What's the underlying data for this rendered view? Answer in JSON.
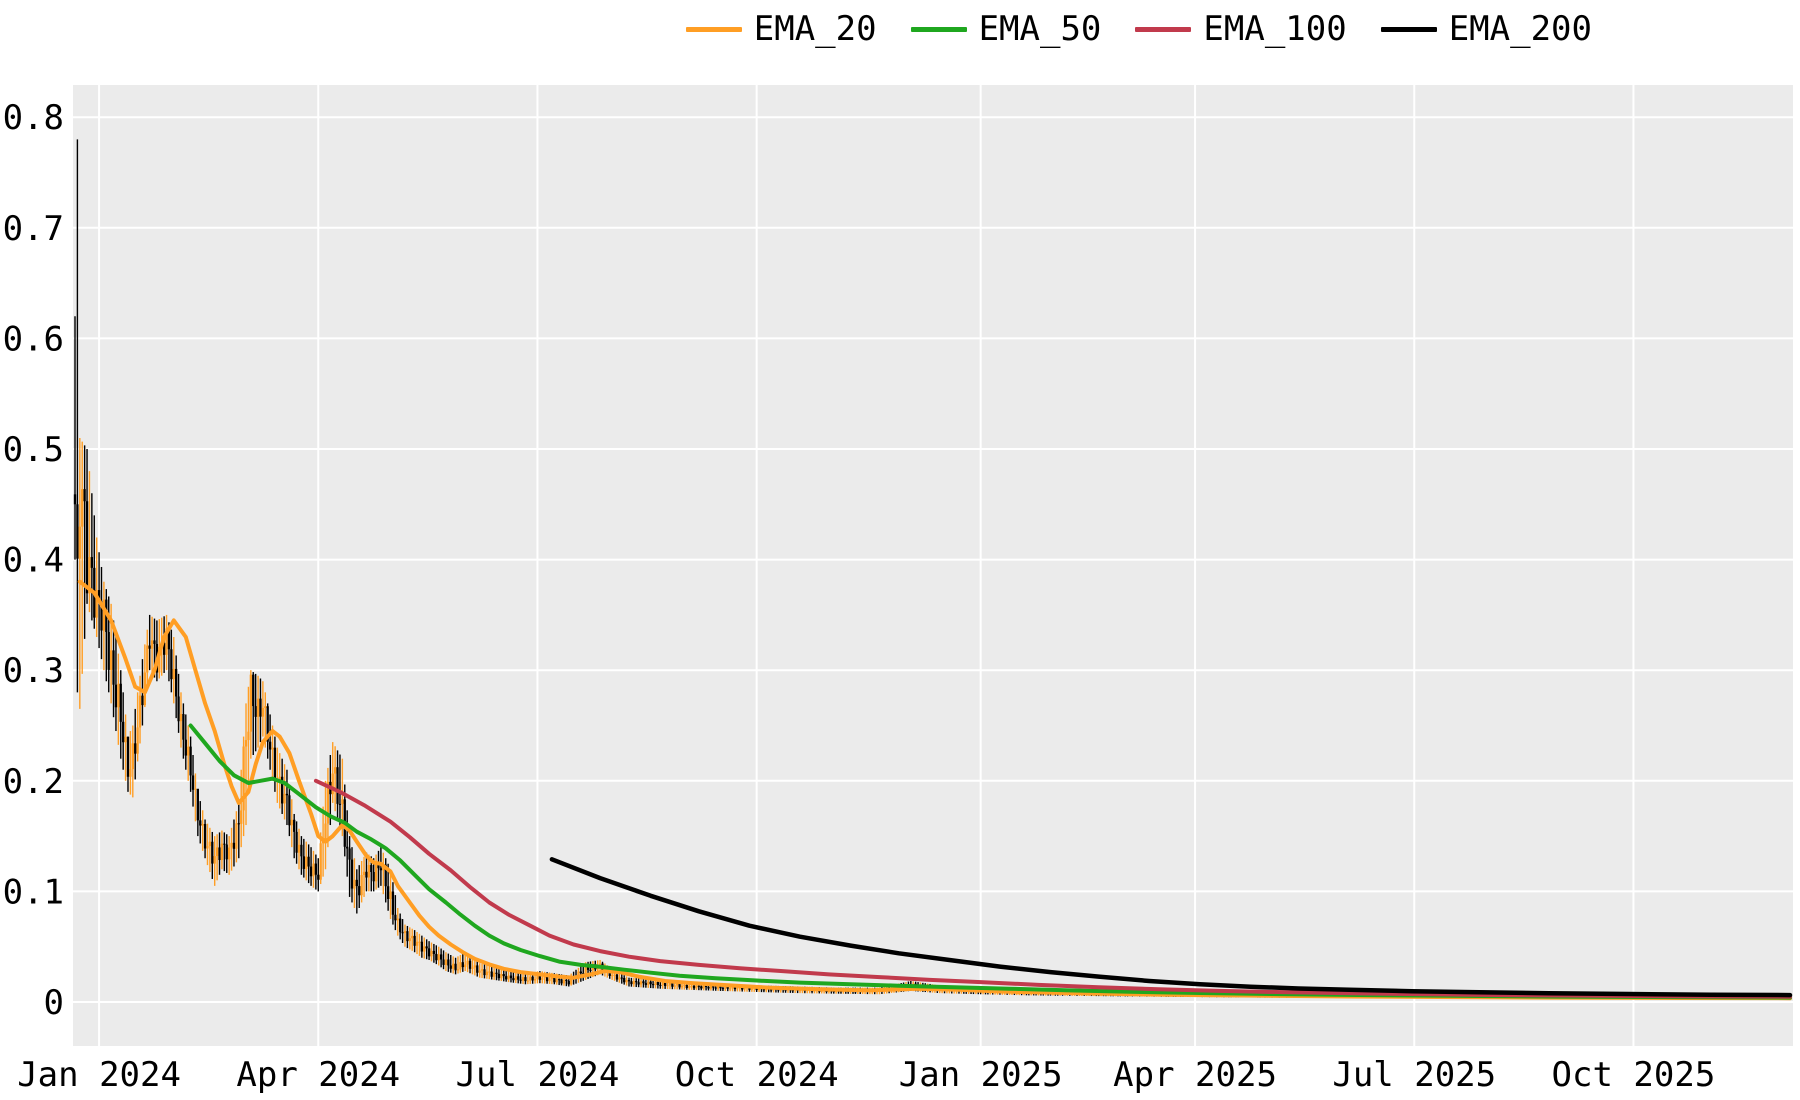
{
  "legend": {
    "items": [
      {
        "label": "EMA_20",
        "color": "#ff9e24"
      },
      {
        "label": "EMA_50",
        "color": "#1fa71f"
      },
      {
        "label": "EMA_100",
        "color": "#c13a4c"
      },
      {
        "label": "EMA_200",
        "color": "#000000"
      }
    ]
  },
  "colors": {
    "figure_bg": "#ffffff",
    "plot_bg": "#ebebeb",
    "grid": "#ffffff",
    "text": "#000000",
    "candle_up": "#ff9e24",
    "candle_down": "#000000"
  },
  "chart_data": {
    "type": "candlestick",
    "title": "",
    "legend_entries": [
      "EMA_20",
      "EMA_50",
      "EMA_100",
      "EMA_200"
    ],
    "x_axis": {
      "unit": "trading day index, d0 = late Dec 2023, ~712 days total",
      "tick_labels": [
        "Jan 2024",
        "Apr 2024",
        "Jul 2024",
        "Oct 2024",
        "Jan 2025",
        "Apr 2025",
        "Jul 2025",
        "Oct 2025"
      ],
      "tick_day_index": [
        10,
        101,
        192,
        283,
        376,
        465,
        556,
        647
      ]
    },
    "y_axis": {
      "lim": [
        -0.04,
        0.83
      ],
      "ticks": [
        {
          "v": 0.0,
          "label": "0"
        },
        {
          "v": 0.1,
          "label": "0.1"
        },
        {
          "v": 0.2,
          "label": "0.2"
        },
        {
          "v": 0.3,
          "label": "0.3"
        },
        {
          "v": 0.4,
          "label": "0.4"
        },
        {
          "v": 0.5,
          "label": "0.5"
        },
        {
          "v": 0.6,
          "label": "0.6"
        },
        {
          "v": 0.7,
          "label": "0.7"
        },
        {
          "v": 0.8,
          "label": "0.8"
        }
      ]
    },
    "grid": true,
    "legend_position": "top-right",
    "price_envelope": {
      "description": "sampled OHLC envelope read from chart: [day, high, low, close]; daily candles interpolated between samples",
      "points": [
        [
          0,
          0.62,
          0.4,
          0.45
        ],
        [
          1,
          0.78,
          0.28,
          0.31
        ],
        [
          2,
          0.51,
          0.265,
          0.48
        ],
        [
          5,
          0.5,
          0.36,
          0.4
        ],
        [
          9,
          0.42,
          0.33,
          0.36
        ],
        [
          12,
          0.38,
          0.3,
          0.35
        ],
        [
          15,
          0.36,
          0.27,
          0.3
        ],
        [
          19,
          0.3,
          0.22,
          0.26
        ],
        [
          22,
          0.24,
          0.19,
          0.21
        ],
        [
          24,
          0.25,
          0.185,
          0.22
        ],
        [
          28,
          0.31,
          0.25,
          0.28
        ],
        [
          31,
          0.35,
          0.3,
          0.33
        ],
        [
          34,
          0.345,
          0.29,
          0.31
        ],
        [
          38,
          0.35,
          0.3,
          0.33
        ],
        [
          41,
          0.33,
          0.27,
          0.29
        ],
        [
          44,
          0.28,
          0.23,
          0.25
        ],
        [
          48,
          0.24,
          0.19,
          0.21
        ],
        [
          51,
          0.19,
          0.15,
          0.17
        ],
        [
          54,
          0.165,
          0.13,
          0.145
        ],
        [
          58,
          0.15,
          0.105,
          0.13
        ],
        [
          61,
          0.155,
          0.12,
          0.14
        ],
        [
          64,
          0.15,
          0.115,
          0.135
        ],
        [
          68,
          0.18,
          0.13,
          0.16
        ],
        [
          71,
          0.27,
          0.16,
          0.24
        ],
        [
          73,
          0.3,
          0.22,
          0.28
        ],
        [
          76,
          0.295,
          0.23,
          0.26
        ],
        [
          78,
          0.29,
          0.24,
          0.27
        ],
        [
          81,
          0.26,
          0.21,
          0.23
        ],
        [
          84,
          0.23,
          0.18,
          0.2
        ],
        [
          88,
          0.21,
          0.16,
          0.18
        ],
        [
          91,
          0.17,
          0.13,
          0.15
        ],
        [
          94,
          0.15,
          0.115,
          0.13
        ],
        [
          98,
          0.14,
          0.105,
          0.12
        ],
        [
          101,
          0.13,
          0.1,
          0.115
        ],
        [
          104,
          0.2,
          0.12,
          0.17
        ],
        [
          107,
          0.235,
          0.18,
          0.21
        ],
        [
          111,
          0.22,
          0.15,
          0.17
        ],
        [
          114,
          0.15,
          0.095,
          0.12
        ],
        [
          117,
          0.12,
          0.08,
          0.1
        ],
        [
          121,
          0.135,
          0.1,
          0.12
        ],
        [
          124,
          0.13,
          0.1,
          0.115
        ],
        [
          127,
          0.14,
          0.105,
          0.125
        ],
        [
          131,
          0.12,
          0.075,
          0.09
        ],
        [
          134,
          0.085,
          0.06,
          0.07
        ],
        [
          137,
          0.07,
          0.05,
          0.06
        ],
        [
          141,
          0.065,
          0.045,
          0.055
        ],
        [
          144,
          0.06,
          0.04,
          0.05
        ],
        [
          147,
          0.055,
          0.038,
          0.045
        ],
        [
          151,
          0.05,
          0.033,
          0.04
        ],
        [
          154,
          0.045,
          0.028,
          0.035
        ],
        [
          158,
          0.04,
          0.025,
          0.03
        ],
        [
          162,
          0.045,
          0.028,
          0.035
        ],
        [
          168,
          0.035,
          0.022,
          0.028
        ],
        [
          174,
          0.032,
          0.02,
          0.025
        ],
        [
          180,
          0.028,
          0.018,
          0.022
        ],
        [
          187,
          0.026,
          0.016,
          0.02
        ],
        [
          193,
          0.028,
          0.017,
          0.022
        ],
        [
          199,
          0.026,
          0.016,
          0.02
        ],
        [
          205,
          0.024,
          0.014,
          0.018
        ],
        [
          212,
          0.036,
          0.02,
          0.03
        ],
        [
          218,
          0.038,
          0.025,
          0.032
        ],
        [
          223,
          0.03,
          0.02,
          0.024
        ],
        [
          230,
          0.022,
          0.014,
          0.018
        ],
        [
          243,
          0.02,
          0.012,
          0.016
        ],
        [
          255,
          0.018,
          0.011,
          0.014
        ],
        [
          268,
          0.016,
          0.01,
          0.013
        ],
        [
          284,
          0.015,
          0.009,
          0.012
        ],
        [
          301,
          0.014,
          0.008,
          0.011
        ],
        [
          317,
          0.013,
          0.0075,
          0.01
        ],
        [
          334,
          0.013,
          0.007,
          0.01
        ],
        [
          347,
          0.019,
          0.01,
          0.015
        ],
        [
          359,
          0.015,
          0.008,
          0.012
        ],
        [
          376,
          0.013,
          0.007,
          0.01
        ],
        [
          396,
          0.012,
          0.006,
          0.009
        ],
        [
          417,
          0.011,
          0.0055,
          0.008
        ],
        [
          438,
          0.01,
          0.005,
          0.007
        ],
        [
          463,
          0.009,
          0.0045,
          0.0065
        ],
        [
          492,
          0.008,
          0.004,
          0.006
        ],
        [
          521,
          0.0075,
          0.0038,
          0.0055
        ],
        [
          554,
          0.007,
          0.0035,
          0.005
        ],
        [
          591,
          0.006,
          0.003,
          0.0045
        ],
        [
          633,
          0.0055,
          0.0028,
          0.004
        ],
        [
          674,
          0.005,
          0.0026,
          0.0038
        ],
        [
          712,
          0.0048,
          0.0025,
          0.0035
        ]
      ]
    },
    "series": [
      {
        "name": "EMA_20",
        "color": "#ff9e24",
        "width": 4,
        "points": [
          [
            2,
            0.38
          ],
          [
            8,
            0.37
          ],
          [
            15,
            0.345
          ],
          [
            21,
            0.31
          ],
          [
            25,
            0.285
          ],
          [
            29,
            0.28
          ],
          [
            33,
            0.3
          ],
          [
            37,
            0.33
          ],
          [
            41,
            0.345
          ],
          [
            46,
            0.33
          ],
          [
            50,
            0.3
          ],
          [
            54,
            0.27
          ],
          [
            58,
            0.245
          ],
          [
            62,
            0.215
          ],
          [
            65,
            0.195
          ],
          [
            68,
            0.18
          ],
          [
            72,
            0.19
          ],
          [
            75,
            0.215
          ],
          [
            78,
            0.235
          ],
          [
            82,
            0.245
          ],
          [
            85,
            0.24
          ],
          [
            89,
            0.225
          ],
          [
            93,
            0.2
          ],
          [
            98,
            0.17
          ],
          [
            101,
            0.15
          ],
          [
            104,
            0.145
          ],
          [
            107,
            0.15
          ],
          [
            111,
            0.16
          ],
          [
            114,
            0.155
          ],
          [
            117,
            0.145
          ],
          [
            121,
            0.132
          ],
          [
            124,
            0.126
          ],
          [
            127,
            0.125
          ],
          [
            131,
            0.118
          ],
          [
            134,
            0.105
          ],
          [
            139,
            0.09
          ],
          [
            143,
            0.078
          ],
          [
            147,
            0.068
          ],
          [
            151,
            0.06
          ],
          [
            156,
            0.052
          ],
          [
            161,
            0.045
          ],
          [
            166,
            0.039
          ],
          [
            172,
            0.034
          ],
          [
            178,
            0.03
          ],
          [
            185,
            0.027
          ],
          [
            193,
            0.025
          ],
          [
            201,
            0.023
          ],
          [
            207,
            0.022
          ],
          [
            214,
            0.025
          ],
          [
            220,
            0.028
          ],
          [
            226,
            0.027
          ],
          [
            234,
            0.023
          ],
          [
            245,
            0.019
          ],
          [
            257,
            0.017
          ],
          [
            272,
            0.015
          ],
          [
            288,
            0.013
          ],
          [
            309,
            0.0115
          ],
          [
            330,
            0.0105
          ],
          [
            349,
            0.012
          ],
          [
            367,
            0.011
          ],
          [
            384,
            0.0095
          ],
          [
            409,
            0.0082
          ],
          [
            434,
            0.0072
          ],
          [
            463,
            0.0063
          ],
          [
            496,
            0.0056
          ],
          [
            529,
            0.005
          ],
          [
            566,
            0.0045
          ],
          [
            612,
            0.004
          ],
          [
            666,
            0.0036
          ],
          [
            712,
            0.0034
          ]
        ]
      },
      {
        "name": "EMA_50",
        "color": "#1fa71f",
        "width": 4,
        "points": [
          [
            48,
            0.25
          ],
          [
            54,
            0.234
          ],
          [
            60,
            0.218
          ],
          [
            66,
            0.205
          ],
          [
            72,
            0.198
          ],
          [
            77,
            0.2
          ],
          [
            82,
            0.202
          ],
          [
            87,
            0.198
          ],
          [
            93,
            0.188
          ],
          [
            100,
            0.176
          ],
          [
            106,
            0.168
          ],
          [
            112,
            0.162
          ],
          [
            117,
            0.154
          ],
          [
            123,
            0.147
          ],
          [
            129,
            0.139
          ],
          [
            135,
            0.128
          ],
          [
            141,
            0.115
          ],
          [
            147,
            0.102
          ],
          [
            154,
            0.09
          ],
          [
            160,
            0.079
          ],
          [
            166,
            0.069
          ],
          [
            172,
            0.06
          ],
          [
            178,
            0.053
          ],
          [
            185,
            0.047
          ],
          [
            193,
            0.0415
          ],
          [
            201,
            0.0365
          ],
          [
            210,
            0.0335
          ],
          [
            218,
            0.0318
          ],
          [
            228,
            0.0292
          ],
          [
            239,
            0.0265
          ],
          [
            251,
            0.0238
          ],
          [
            266,
            0.0215
          ],
          [
            282,
            0.0195
          ],
          [
            301,
            0.0175
          ],
          [
            322,
            0.016
          ],
          [
            342,
            0.0147
          ],
          [
            363,
            0.0135
          ],
          [
            388,
            0.012
          ],
          [
            413,
            0.0105
          ],
          [
            438,
            0.0092
          ],
          [
            467,
            0.0081
          ],
          [
            500,
            0.0071
          ],
          [
            533,
            0.0063
          ],
          [
            571,
            0.0056
          ],
          [
            616,
            0.0049
          ],
          [
            666,
            0.0044
          ],
          [
            712,
            0.004
          ]
        ]
      },
      {
        "name": "EMA_100",
        "color": "#c13a4c",
        "width": 4,
        "points": [
          [
            100,
            0.2
          ],
          [
            110,
            0.19
          ],
          [
            120,
            0.178
          ],
          [
            131,
            0.163
          ],
          [
            139,
            0.149
          ],
          [
            147,
            0.134
          ],
          [
            156,
            0.119
          ],
          [
            164,
            0.104
          ],
          [
            172,
            0.09
          ],
          [
            180,
            0.079
          ],
          [
            189,
            0.069
          ],
          [
            197,
            0.06
          ],
          [
            207,
            0.052
          ],
          [
            218,
            0.046
          ],
          [
            230,
            0.041
          ],
          [
            243,
            0.037
          ],
          [
            259,
            0.0335
          ],
          [
            276,
            0.0305
          ],
          [
            293,
            0.028
          ],
          [
            313,
            0.025
          ],
          [
            334,
            0.0225
          ],
          [
            355,
            0.02
          ],
          [
            376,
            0.018
          ],
          [
            400,
            0.0155
          ],
          [
            425,
            0.0133
          ],
          [
            450,
            0.0115
          ],
          [
            475,
            0.01
          ],
          [
            504,
            0.0088
          ],
          [
            533,
            0.0078
          ],
          [
            562,
            0.007
          ],
          [
            595,
            0.0062
          ],
          [
            633,
            0.0056
          ],
          [
            674,
            0.0051
          ],
          [
            712,
            0.0048
          ]
        ]
      },
      {
        "name": "EMA_200",
        "color": "#000000",
        "width": 4.5,
        "points": [
          [
            198,
            0.129
          ],
          [
            218,
            0.112
          ],
          [
            239,
            0.096
          ],
          [
            259,
            0.082
          ],
          [
            280,
            0.069
          ],
          [
            301,
            0.059
          ],
          [
            322,
            0.051
          ],
          [
            342,
            0.044
          ],
          [
            363,
            0.038
          ],
          [
            384,
            0.032
          ],
          [
            405,
            0.027
          ],
          [
            425,
            0.023
          ],
          [
            446,
            0.019
          ],
          [
            467,
            0.016
          ],
          [
            488,
            0.0138
          ],
          [
            508,
            0.0122
          ],
          [
            529,
            0.011
          ],
          [
            555,
            0.0098
          ],
          [
            583,
            0.0088
          ],
          [
            612,
            0.008
          ],
          [
            645,
            0.0072
          ],
          [
            679,
            0.0066
          ],
          [
            712,
            0.0062
          ]
        ]
      }
    ]
  }
}
